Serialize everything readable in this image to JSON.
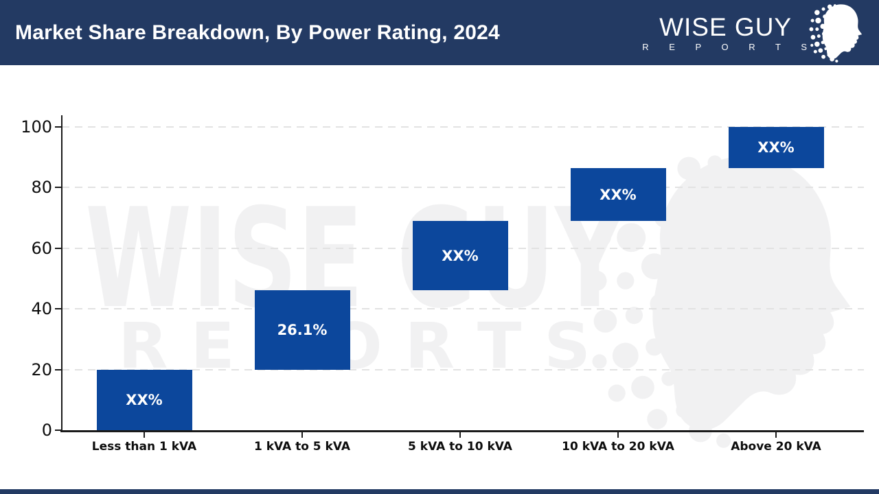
{
  "header": {
    "title": "Market Share Breakdown, By Power Rating, 2024",
    "logo": {
      "line1": "WISE GUY",
      "line2": "R E P O R T S"
    }
  },
  "watermark": {
    "line1": "WISE GUY",
    "line2": "R E P O R T S"
  },
  "colors": {
    "header_bg": "#233a63",
    "footer_bg": "#233a63",
    "bar": "#0c479c",
    "bar_label": "#ffffff",
    "watermark": "#f1f1f2",
    "gridline": "#e2e2e2",
    "axis": "#1a1a1a",
    "title_text": "#ffffff"
  },
  "chart_data": {
    "type": "bar",
    "subtype": "waterfall",
    "title": "Market Share Breakdown, By Power Rating, 2024",
    "xlabel": "",
    "ylabel": "",
    "ylim": [
      0,
      100
    ],
    "yticks": [
      0,
      20,
      40,
      60,
      80,
      100
    ],
    "grid": "horizontal-dashed",
    "legend": "none",
    "categories": [
      "Less than 1 kVA",
      "1 kVA to 5 kVA",
      "5 kVA to 10 kVA",
      "10 kVA to 20 kVA",
      "Above 20 kVA"
    ],
    "segments": [
      {
        "category": "Less than 1 kVA",
        "start": 0,
        "end": 20,
        "label": "XX%"
      },
      {
        "category": "1 kVA to 5 kVA",
        "start": 20,
        "end": 46.1,
        "label": "26.1%",
        "value": 26.1
      },
      {
        "category": "5 kVA to 10 kVA",
        "start": 46.1,
        "end": 68.9,
        "label": "XX%"
      },
      {
        "category": "10 kVA to 20 kVA",
        "start": 68.9,
        "end": 86.4,
        "label": "XX%"
      },
      {
        "category": "Above 20 kVA",
        "start": 86.4,
        "end": 100,
        "label": "XX%"
      }
    ]
  }
}
